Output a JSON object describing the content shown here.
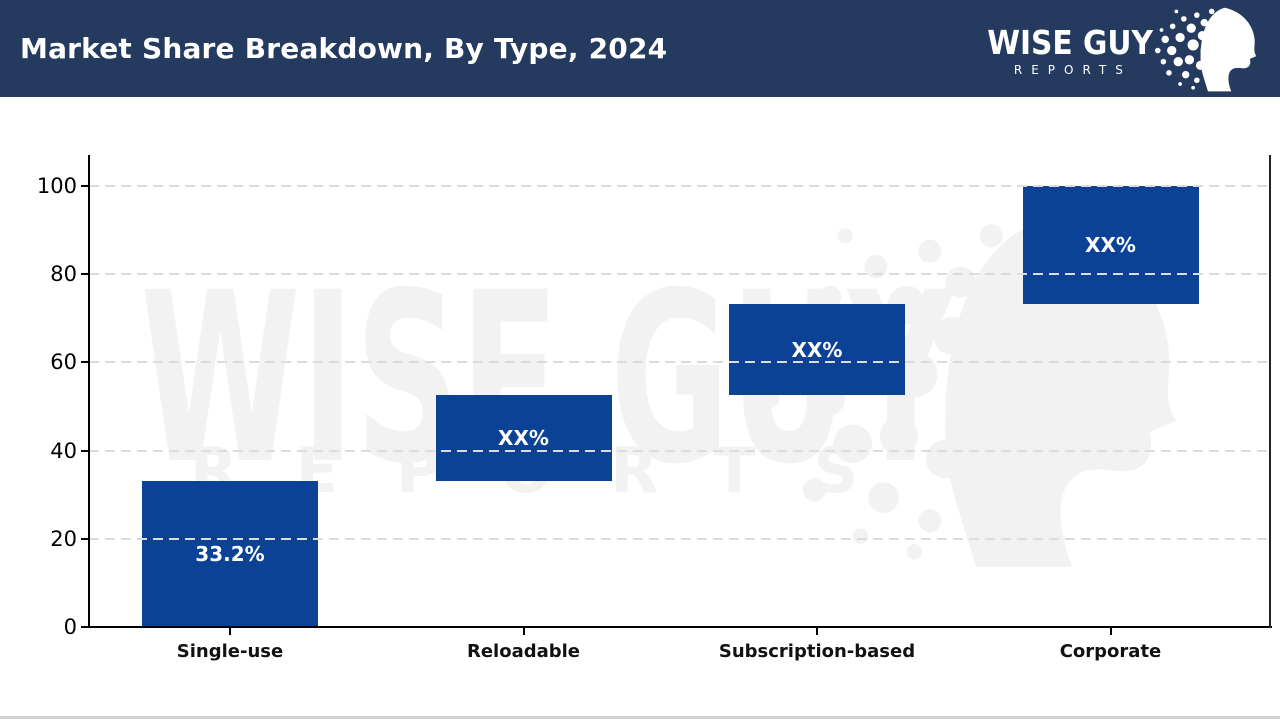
{
  "header": {
    "title": "Market Share Breakdown, By Type, 2024"
  },
  "logo": {
    "name_line": "WISE GUY",
    "reports_line": "REPORTS"
  },
  "watermark": {
    "name_line": "WISE GUY",
    "reports_line": "REPORTS"
  },
  "chart_data": {
    "type": "bar",
    "subtype": "waterfall",
    "title": "Market Share Breakdown, By Type, 2024",
    "categories": [
      "Single-use",
      "Reloadable",
      "Subscription-based",
      "Corporate"
    ],
    "series": [
      {
        "name": "Market share (%)",
        "ranges": [
          [
            0,
            33.2
          ],
          [
            33.2,
            52.5
          ],
          [
            52.5,
            73.2
          ],
          [
            73.2,
            100
          ]
        ]
      }
    ],
    "bar_labels": [
      "33.2%",
      "XX%",
      "XX%",
      "XX%"
    ],
    "xlabel": "",
    "ylabel": "",
    "ylim": [
      0,
      107
    ],
    "yticks": [
      0,
      20,
      40,
      60,
      80,
      100
    ],
    "grid": "horizontal-dashed-drawn-over-bars",
    "legend": "none",
    "colors": {
      "bar": "#0b4296",
      "bar_label": "#ffffff",
      "grid": "#dcdcdc",
      "axis": "#000000",
      "header_bg": "#253a5f",
      "header_text": "#ffffff",
      "watermark": "#f2f2f2",
      "category_label": "#111111"
    }
  }
}
